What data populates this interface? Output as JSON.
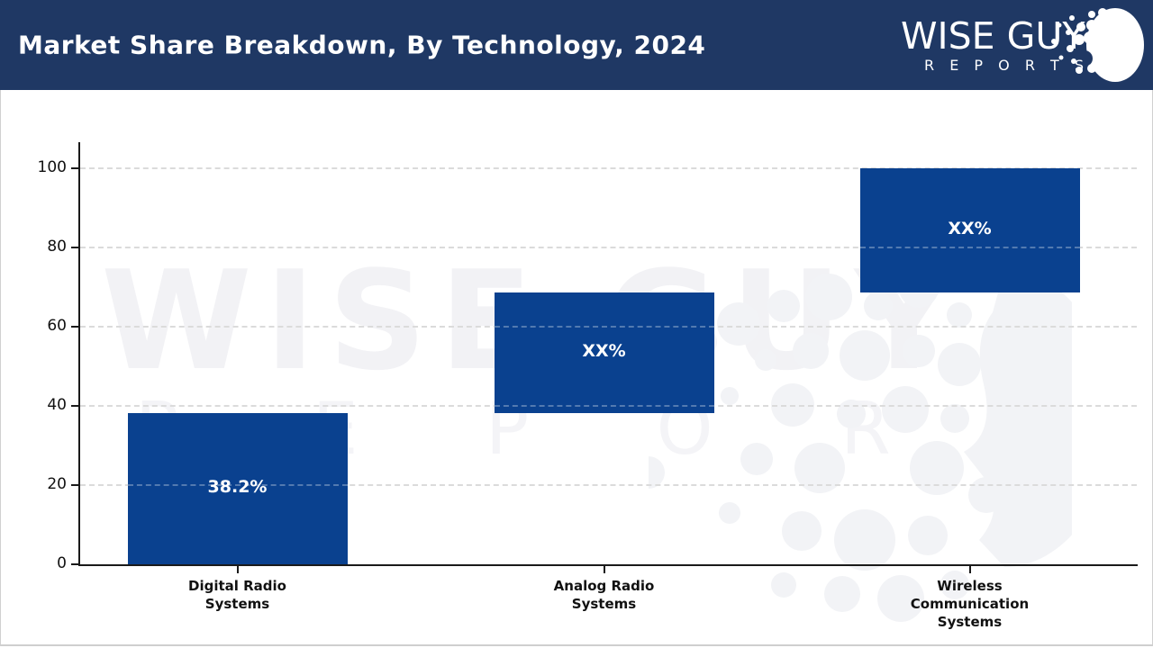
{
  "header": {
    "title": "Market Share Breakdown, By Technology, 2024",
    "background": "#1F3864",
    "logo": {
      "line1": "WISE GUY",
      "line2": "R E P O R T S"
    }
  },
  "watermark": {
    "line1": "WISE GUY",
    "line2": "R E P O R T S"
  },
  "chart_data": {
    "type": "bar",
    "subtype": "waterfall",
    "title": "Market Share Breakdown, By Technology, 2024",
    "xlabel": "",
    "ylabel": "",
    "ylim": [
      0,
      100
    ],
    "yticks": [
      0,
      20,
      40,
      60,
      80,
      100
    ],
    "grid": true,
    "grid_style": "dashed",
    "bar_color": "#0A418F",
    "value_label_color": "#ffffff",
    "categories": [
      "Digital Radio\nSystems",
      "Analog Radio\nSystems",
      "Wireless\nCommunication\nSystems"
    ],
    "segments": [
      {
        "category": "Digital Radio Systems",
        "start": 0,
        "end": 38.2,
        "label": "38.2%"
      },
      {
        "category": "Analog Radio Systems",
        "start": 38.2,
        "end": 68.6,
        "label": "XX%"
      },
      {
        "category": "Wireless Communication Systems",
        "start": 68.6,
        "end": 100,
        "label": "XX%"
      }
    ]
  }
}
